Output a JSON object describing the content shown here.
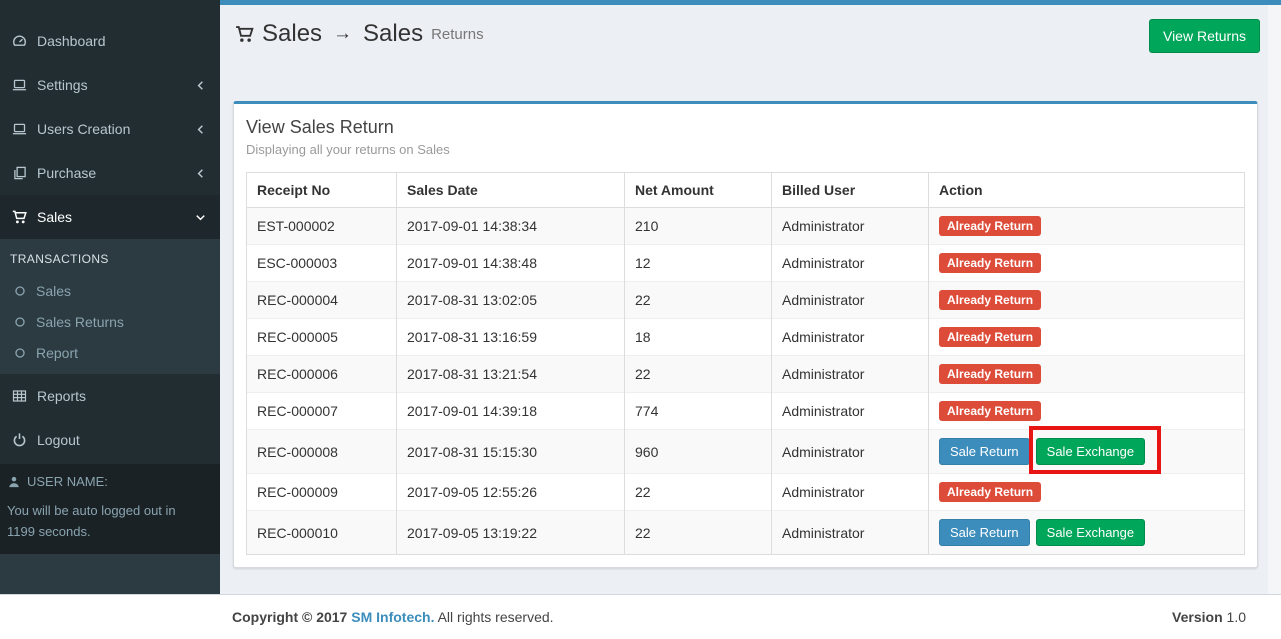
{
  "colors": {
    "accent_blue": "#3c8dbc",
    "success_green": "#00a65a",
    "danger_red": "#dd4b39",
    "annotation_red": "#e81515",
    "sidebar_bg": "#222d32",
    "sidebar_active_bg": "#1e282c",
    "submenu_bg": "#2c3b41"
  },
  "sidebar": {
    "items": [
      {
        "label": "Dashboard",
        "icon": "dashboard-icon",
        "chevron": null,
        "active": false
      },
      {
        "label": "Settings",
        "icon": "laptop-icon",
        "chevron": "left",
        "active": false
      },
      {
        "label": "Users Creation",
        "icon": "laptop-icon",
        "chevron": "left",
        "active": false
      },
      {
        "label": "Purchase",
        "icon": "copy-icon",
        "chevron": "left",
        "active": false
      },
      {
        "label": "Sales",
        "icon": "cart-icon",
        "chevron": "down",
        "active": true
      }
    ],
    "section_header": "TRANSACTIONS",
    "submenu": [
      {
        "label": "Sales",
        "icon": "circle-icon"
      },
      {
        "label": "Sales Returns",
        "icon": "circle-icon"
      },
      {
        "label": "Report",
        "icon": "circle-icon"
      }
    ],
    "items_bottom": [
      {
        "label": "Reports",
        "icon": "table-icon"
      },
      {
        "label": "Logout",
        "icon": "power-icon"
      }
    ],
    "user_label": "USER NAME:",
    "auto_logout_line1": "You will be auto logged out in",
    "auto_logout_line2": "1199 seconds."
  },
  "header": {
    "title_primary": "Sales",
    "arrow": "→",
    "title_secondary": "Sales",
    "title_small": "Returns",
    "view_returns_button": "View Returns"
  },
  "panel": {
    "title": "View Sales Return",
    "subtitle": "Displaying all your returns on Sales"
  },
  "table": {
    "columns": [
      "Receipt No",
      "Sales Date",
      "Net Amount",
      "Billed User",
      "Action"
    ],
    "action_labels": {
      "already_return": "Already Return",
      "sale_return": "Sale Return",
      "sale_exchange": "Sale Exchange"
    },
    "rows": [
      {
        "receipt_no": "EST-000002",
        "sales_date": "2017-09-01 14:38:34",
        "net_amount": "210",
        "billed_user": "Administrator",
        "actions": [
          {
            "type": "already_return"
          }
        ]
      },
      {
        "receipt_no": "ESC-000003",
        "sales_date": "2017-09-01 14:38:48",
        "net_amount": "12",
        "billed_user": "Administrator",
        "actions": [
          {
            "type": "already_return"
          }
        ]
      },
      {
        "receipt_no": "REC-000004",
        "sales_date": "2017-08-31 13:02:05",
        "net_amount": "22",
        "billed_user": "Administrator",
        "actions": [
          {
            "type": "already_return"
          }
        ]
      },
      {
        "receipt_no": "REC-000005",
        "sales_date": "2017-08-31 13:16:59",
        "net_amount": "18",
        "billed_user": "Administrator",
        "actions": [
          {
            "type": "already_return"
          }
        ]
      },
      {
        "receipt_no": "REC-000006",
        "sales_date": "2017-08-31 13:21:54",
        "net_amount": "22",
        "billed_user": "Administrator",
        "actions": [
          {
            "type": "already_return"
          }
        ]
      },
      {
        "receipt_no": "REC-000007",
        "sales_date": "2017-09-01 14:39:18",
        "net_amount": "774",
        "billed_user": "Administrator",
        "actions": [
          {
            "type": "already_return"
          }
        ]
      },
      {
        "receipt_no": "REC-000008",
        "sales_date": "2017-08-31 15:15:30",
        "net_amount": "960",
        "billed_user": "Administrator",
        "actions": [
          {
            "type": "sale_return"
          },
          {
            "type": "sale_exchange",
            "highlighted": true
          }
        ]
      },
      {
        "receipt_no": "REC-000009",
        "sales_date": "2017-09-05 12:55:26",
        "net_amount": "22",
        "billed_user": "Administrator",
        "actions": [
          {
            "type": "already_return"
          }
        ]
      },
      {
        "receipt_no": "REC-000010",
        "sales_date": "2017-09-05 13:19:22",
        "net_amount": "22",
        "billed_user": "Administrator",
        "actions": [
          {
            "type": "sale_return"
          },
          {
            "type": "sale_exchange"
          }
        ]
      }
    ]
  },
  "footer": {
    "copyright_prefix": "Copyright © 2017",
    "brand": "SM Infotech.",
    "suffix": "All rights reserved.",
    "version_label": "Version",
    "version_value": "1.0"
  }
}
